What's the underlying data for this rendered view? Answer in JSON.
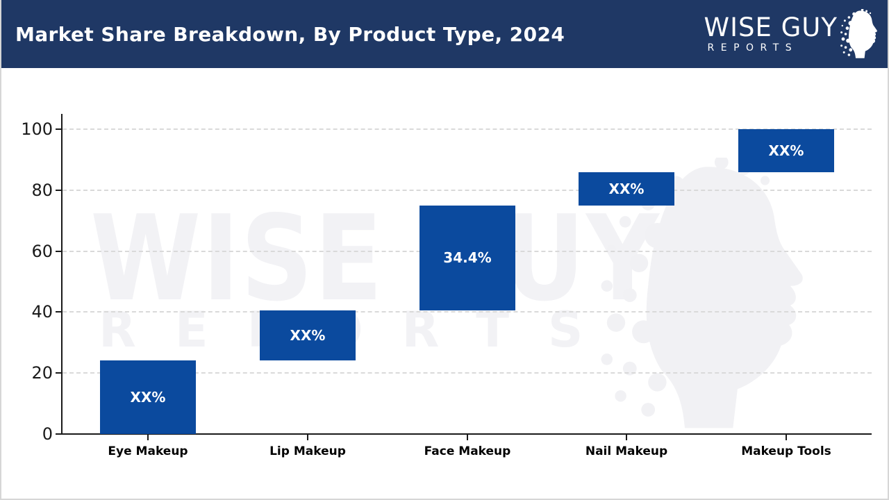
{
  "header": {
    "title": "Market Share Breakdown, By Product Type, 2024",
    "bg_color": "#1f3865",
    "logo": {
      "line1": "WISE GUY",
      "line2": "REPORTS"
    }
  },
  "watermark": {
    "line1": "WISE GUY",
    "line2": "REPORTS"
  },
  "chart_data": {
    "type": "bar",
    "variant": "waterfall",
    "title": "Market Share Breakdown, By Product Type, 2024",
    "categories": [
      "Eye Makeup",
      "Lip Makeup",
      "Face Makeup",
      "Nail Makeup",
      "Makeup Tools"
    ],
    "series": [
      {
        "name": "Market share (%)",
        "segments": [
          {
            "category": "Eye Makeup",
            "start": 0,
            "end": 24.1,
            "label": "XX%"
          },
          {
            "category": "Lip Makeup",
            "start": 24.1,
            "end": 40.6,
            "label": "XX%"
          },
          {
            "category": "Face Makeup",
            "start": 40.6,
            "end": 75.0,
            "label": "34.4%",
            "value": 34.4
          },
          {
            "category": "Nail Makeup",
            "start": 75.0,
            "end": 85.9,
            "label": "XX%"
          },
          {
            "category": "Makeup Tools",
            "start": 85.9,
            "end": 100,
            "label": "XX%"
          }
        ]
      }
    ],
    "ylim": [
      0,
      105
    ],
    "yticks": [
      0,
      20,
      40,
      60,
      80,
      100
    ],
    "grid": "horizontal-dashed",
    "legend": "none",
    "bar_color": "#0b4a9e",
    "bar_label_color": "#ffffff",
    "axis_color": "#1a1a1a",
    "gridline_color": "#d9d9d9"
  }
}
